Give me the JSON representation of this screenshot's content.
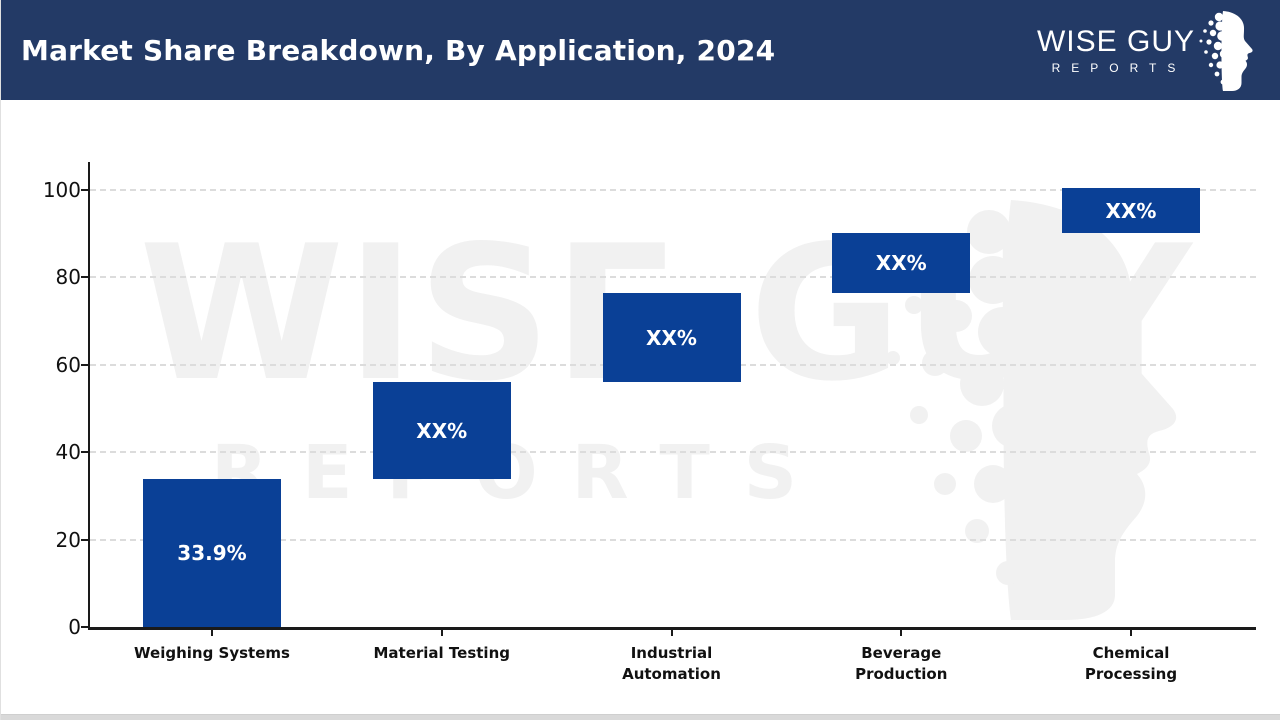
{
  "header": {
    "title": "Market Share Breakdown, By Application, 2024",
    "logo": {
      "line1": "WISE GUY",
      "line2": "REPORTS"
    }
  },
  "watermark": {
    "line1": "WISE GUY",
    "line2": "REPORTS"
  },
  "colors": {
    "header_bg": "#233a66",
    "bar_blue": "#0a4096",
    "grid_gray": "#dcdcdc",
    "footer_gray": "#d9d9d9",
    "watermark_gray": "#f1f1f1"
  },
  "chart_data": {
    "type": "bar",
    "subtype": "waterfall-floating-bars",
    "title": "Market Share Breakdown, By Application, 2024",
    "categories": [
      "Weighing Systems",
      "Material Testing",
      "Industrial Automation",
      "Beverage Production",
      "Chemical Processing"
    ],
    "segments": [
      {
        "name": "Weighing Systems",
        "label_lines": [
          "Weighing Systems"
        ],
        "start": 0,
        "end": 33.9,
        "label": "33.9%"
      },
      {
        "name": "Material Testing",
        "label_lines": [
          "Material Testing"
        ],
        "start": 33.9,
        "end": 56.0,
        "label": "XX%"
      },
      {
        "name": "Industrial Automation",
        "label_lines": [
          "Industrial",
          "Automation"
        ],
        "start": 56.0,
        "end": 76.4,
        "label": "XX%"
      },
      {
        "name": "Beverage Production",
        "label_lines": [
          "Beverage",
          "Production"
        ],
        "start": 76.4,
        "end": 90.1,
        "label": "XX%"
      },
      {
        "name": "Chemical Processing",
        "label_lines": [
          "Chemical",
          "Processing"
        ],
        "start": 90.1,
        "end": 100.5,
        "label": "XX%"
      }
    ],
    "ylabel": "",
    "xlabel": "",
    "yticks": [
      0,
      20,
      40,
      60,
      80,
      100
    ],
    "ylim": [
      0,
      105
    ],
    "grid": "horizontal-dashed",
    "legend": "none",
    "bar_color": "#0a4096",
    "value_label_color": "#ffffff"
  }
}
